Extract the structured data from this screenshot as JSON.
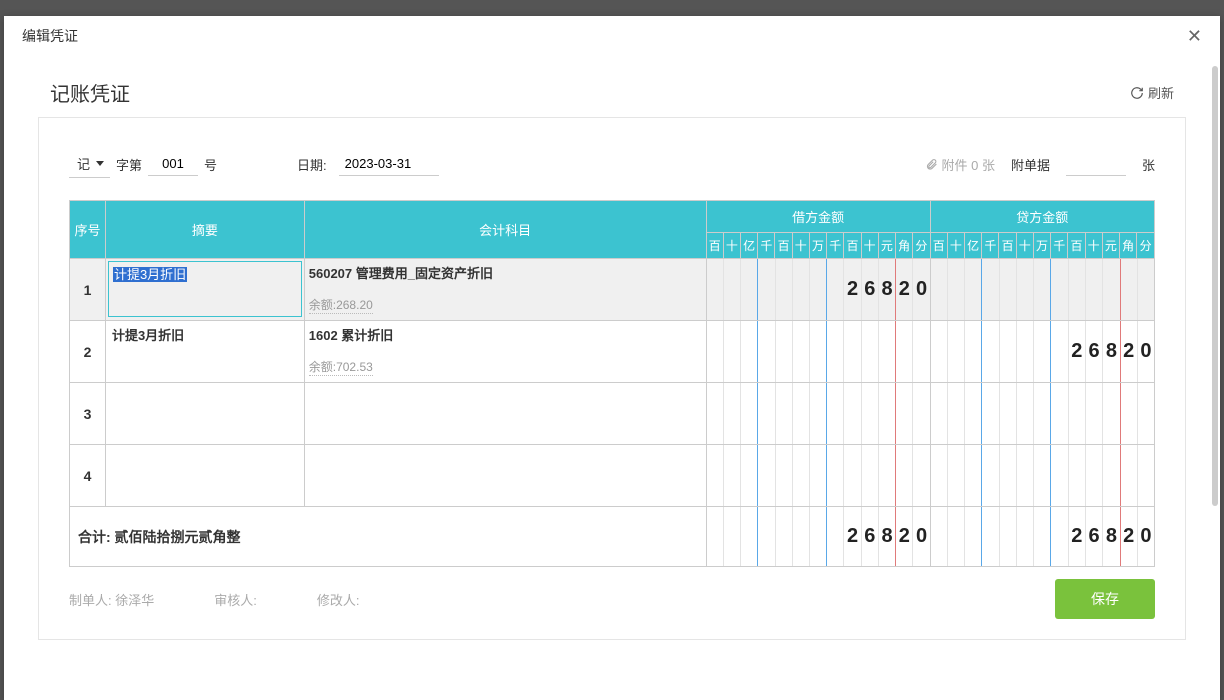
{
  "modal": {
    "title": "编辑凭证"
  },
  "page": {
    "title": "记账凭证",
    "refresh_label": "刷新"
  },
  "voucher": {
    "word": "记",
    "zi_di_prefix": "字第",
    "number": "001",
    "hao_suffix": "号",
    "date_label": "日期:",
    "date": "2023-03-31",
    "attach_label": "附件 0 张",
    "danju_label": "附单据",
    "danju_suffix": "张"
  },
  "headers": {
    "no": "序号",
    "abstract": "摘要",
    "account": "会计科目",
    "debit": "借方金额",
    "credit": "贷方金额",
    "digits": [
      "百",
      "十",
      "亿",
      "千",
      "百",
      "十",
      "万",
      "千",
      "百",
      "十",
      "元",
      "角",
      "分"
    ]
  },
  "rows": [
    {
      "no": "1",
      "abstract": "计提3月折旧",
      "account": "560207 管理费用_固定资产折旧",
      "balance_label": "余额:268.20",
      "debit_digits": [
        "",
        "",
        "",
        "",
        "",
        "",
        "",
        "",
        "2",
        "6",
        "8",
        "2",
        "0"
      ],
      "credit_digits": [
        "",
        "",
        "",
        "",
        "",
        "",
        "",
        "",
        "",
        "",
        "",
        "",
        ""
      ],
      "editing": true
    },
    {
      "no": "2",
      "abstract": "计提3月折旧",
      "account": "1602 累计折旧",
      "balance_label": "余额:702.53",
      "debit_digits": [
        "",
        "",
        "",
        "",
        "",
        "",
        "",
        "",
        "",
        "",
        "",
        "",
        ""
      ],
      "credit_digits": [
        "",
        "",
        "",
        "",
        "",
        "",
        "",
        "",
        "2",
        "6",
        "8",
        "2",
        "0"
      ]
    },
    {
      "no": "3",
      "abstract": "",
      "account": "",
      "balance_label": "",
      "debit_digits": [
        "",
        "",
        "",
        "",
        "",
        "",
        "",
        "",
        "",
        "",
        "",
        "",
        ""
      ],
      "credit_digits": [
        "",
        "",
        "",
        "",
        "",
        "",
        "",
        "",
        "",
        "",
        "",
        "",
        ""
      ]
    },
    {
      "no": "4",
      "abstract": "",
      "account": "",
      "balance_label": "",
      "debit_digits": [
        "",
        "",
        "",
        "",
        "",
        "",
        "",
        "",
        "",
        "",
        "",
        "",
        ""
      ],
      "credit_digits": [
        "",
        "",
        "",
        "",
        "",
        "",
        "",
        "",
        "",
        "",
        "",
        "",
        ""
      ]
    }
  ],
  "totals": {
    "label": "合计:  贰佰陆拾捌元贰角整",
    "debit_digits": [
      "",
      "",
      "",
      "",
      "",
      "",
      "",
      "",
      "2",
      "6",
      "8",
      "2",
      "0"
    ],
    "credit_digits": [
      "",
      "",
      "",
      "",
      "",
      "",
      "",
      "",
      "2",
      "6",
      "8",
      "2",
      "0"
    ]
  },
  "footer": {
    "preparer_label": "制单人:",
    "preparer": "徐泽华",
    "auditor_label": "审核人:",
    "auditor": "",
    "modifier_label": "修改人:",
    "modifier": "",
    "save_label": "保存"
  },
  "colors": {
    "header_bg": "#3cc3d0",
    "save_btn": "#7ac23c",
    "highlight_bg": "#2f6fd0"
  }
}
